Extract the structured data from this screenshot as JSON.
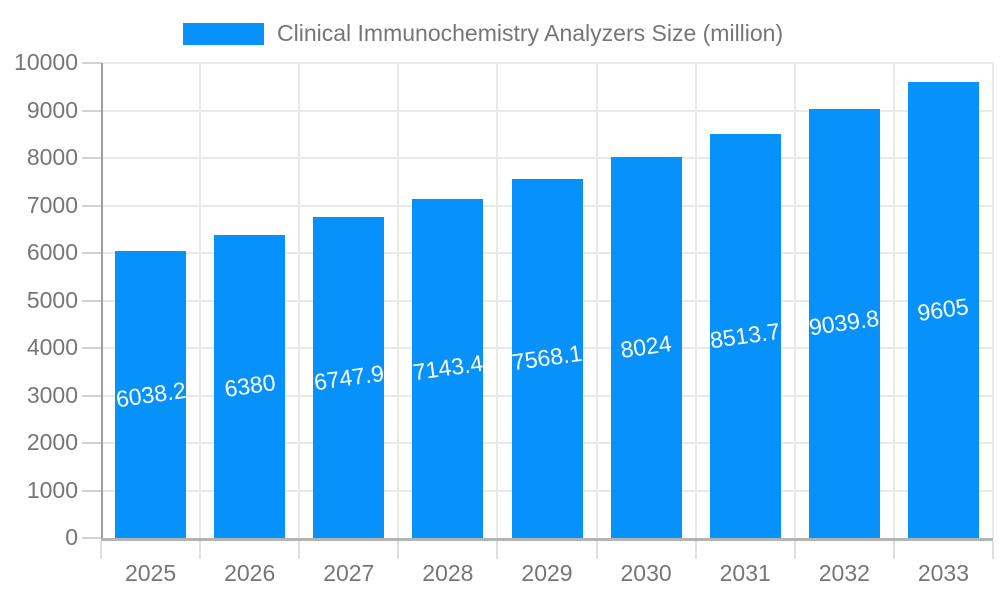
{
  "legend": {
    "swatch_color": "#0791fb"
  },
  "chart_data": {
    "type": "bar",
    "title": "Clinical Immunochemistry Analyzers Size (million)",
    "categories": [
      "2025",
      "2026",
      "2027",
      "2028",
      "2029",
      "2030",
      "2031",
      "2032",
      "2033"
    ],
    "values": [
      6038.2,
      6380,
      6747.9,
      7143.4,
      7568.1,
      8024,
      8513.7,
      9039.8,
      9605
    ],
    "value_labels": [
      "6038.2",
      "6380",
      "6747.9",
      "7143.4",
      "7568.1",
      "8024",
      "8513.7",
      "9039.8",
      "9605"
    ],
    "xlabel": "",
    "ylabel": "",
    "ylim": [
      0,
      10000
    ],
    "y_ticks": [
      0,
      1000,
      2000,
      3000,
      4000,
      5000,
      6000,
      7000,
      8000,
      9000,
      10000
    ],
    "y_tick_labels": [
      "0",
      "1000",
      "2000",
      "3000",
      "4000",
      "5000",
      "6000",
      "7000",
      "8000",
      "9000",
      "10000"
    ],
    "grid": true,
    "legend_position": "top",
    "bar_color": "#0791fb",
    "value_label_color": "#ffffff",
    "axis_text_color": "#767676"
  }
}
